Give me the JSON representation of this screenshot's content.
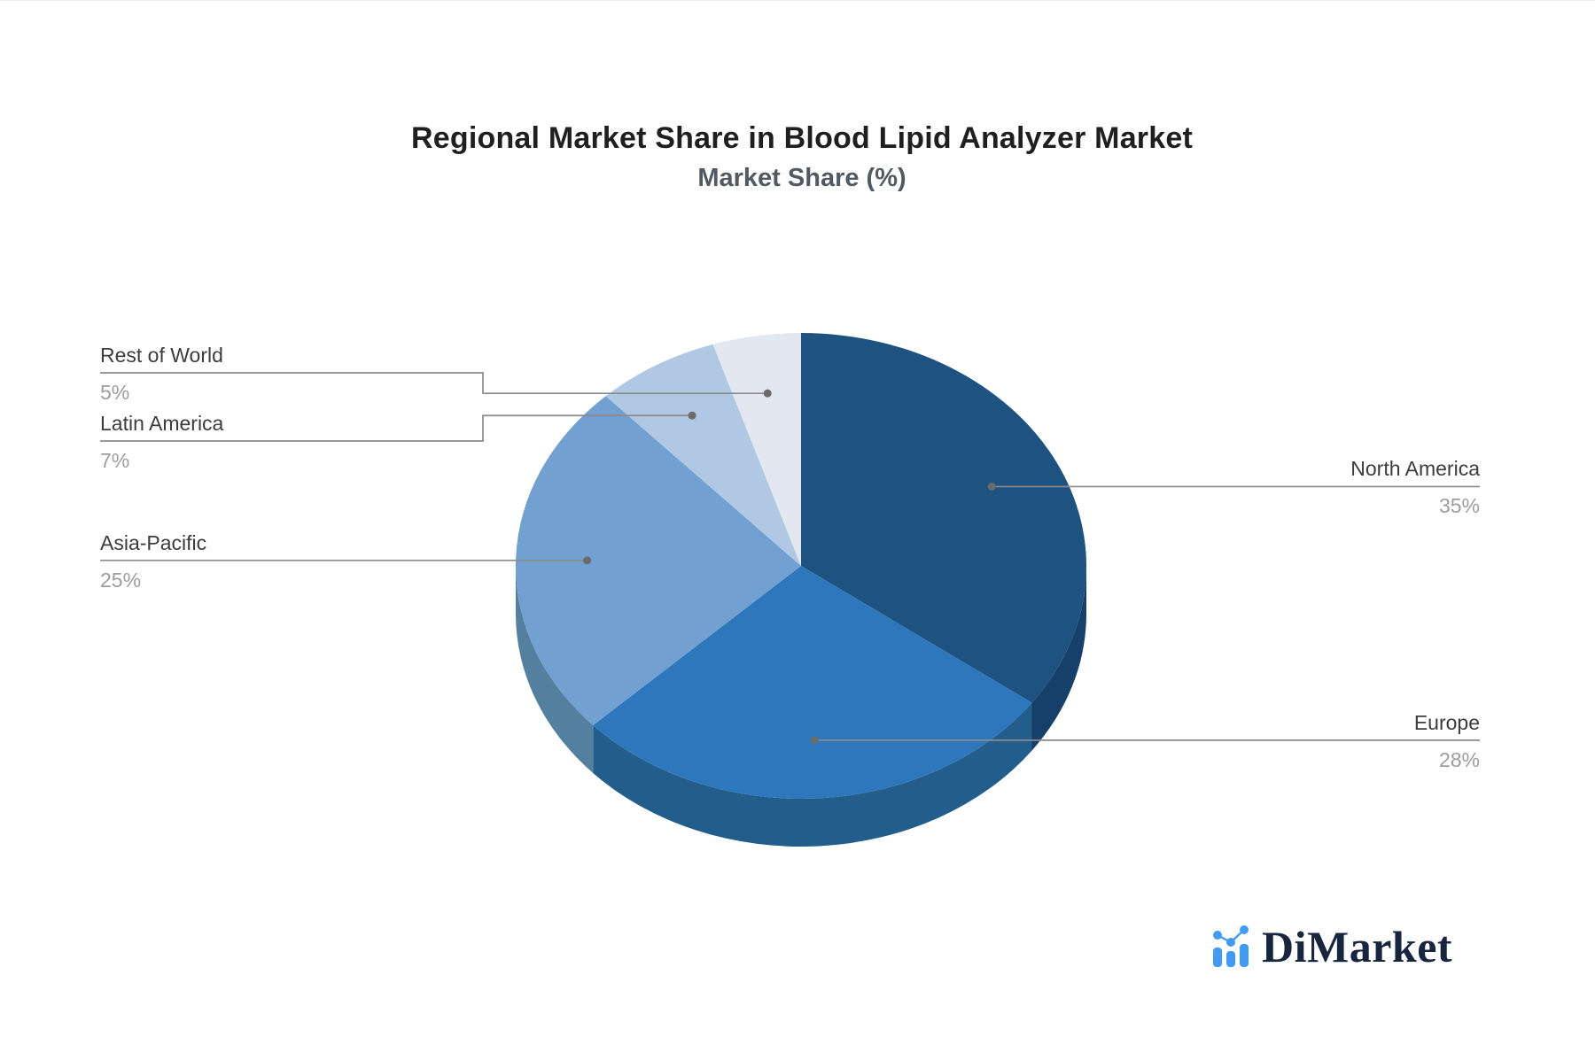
{
  "header": {
    "title": "Regional Market Share in Blood Lipid Analyzer Market",
    "subtitle": "Market Share (%)"
  },
  "chart_data": {
    "type": "pie",
    "style": "3d-pie",
    "title": "Regional Market Share in Blood Lipid Analyzer Market",
    "subtitle": "Market Share (%)",
    "unit": "percent",
    "start_angle_deg": 0,
    "direction": "clockwise",
    "categories": [
      "North America",
      "Europe",
      "Asia-Pacific",
      "Latin America",
      "Rest of World"
    ],
    "values": [
      35,
      28,
      25,
      7,
      5
    ],
    "labels": [
      "35%",
      "28%",
      "25%",
      "7%",
      "5%"
    ],
    "colors": [
      "#1E5280",
      "#2E77BC",
      "#71A0D1",
      "#B0C8E3",
      "#E2E7F0"
    ],
    "side_colors": [
      "#16406A",
      "#235D8C",
      "#53809F",
      "#8FACC9",
      "#BCC7D4"
    ],
    "leader_line_color": "#8B8B8B",
    "dot_color": "#6B6B6B",
    "name_color": "#3C3C3C",
    "value_color": "#9D9D9D",
    "legend_position": "callouts"
  },
  "logo": {
    "text": "DiMarket",
    "icon_color": "#419AF3",
    "text_color": "#18253F"
  }
}
